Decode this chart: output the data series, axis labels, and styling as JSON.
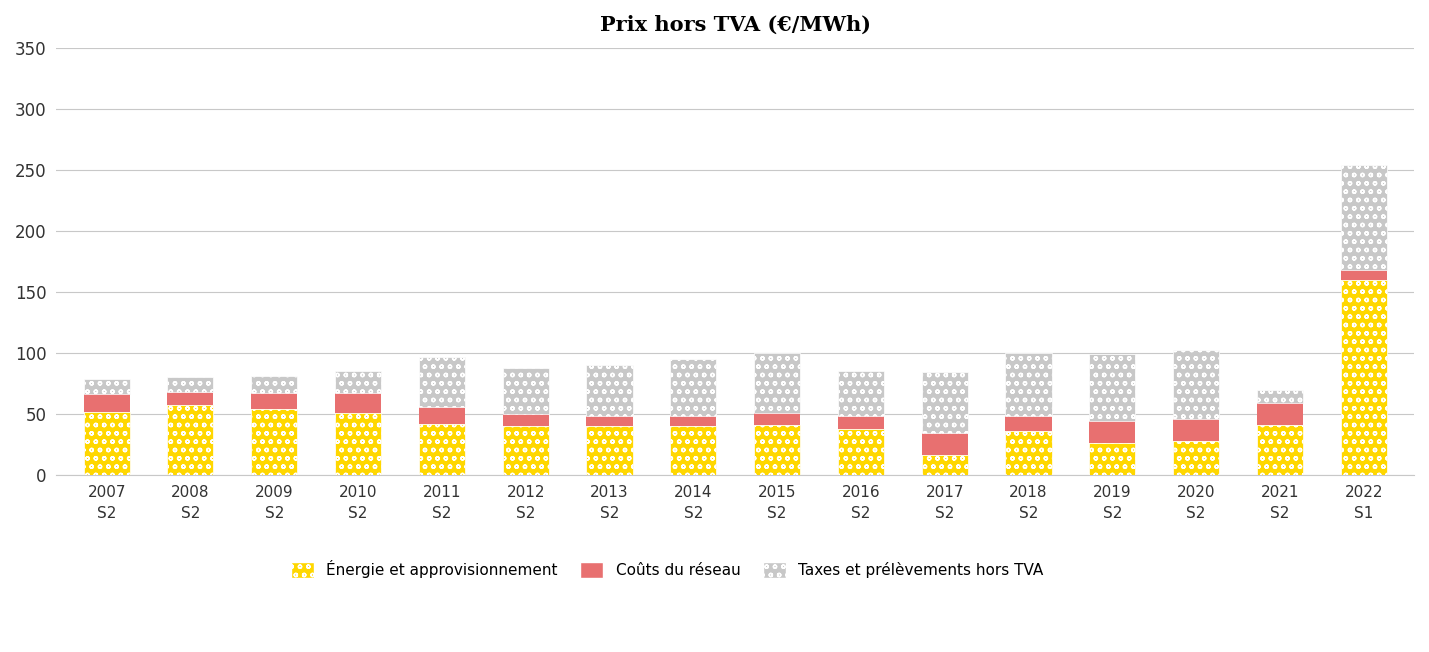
{
  "title": "Prix hors TVA (€/MWh)",
  "categories": [
    "2007\nS2",
    "2008\nS2",
    "2009\nS2",
    "2010\nS2",
    "2011\nS2",
    "2012\nS2",
    "2013\nS2",
    "2014\nS2",
    "2015\nS2",
    "2016\nS2",
    "2017\nS2",
    "2018\nS2",
    "2019\nS2",
    "2020\nS2",
    "2021\nS2",
    "2022\nS1"
  ],
  "energie": [
    52,
    57,
    54,
    51,
    42,
    40,
    40,
    40,
    41,
    38,
    16,
    36,
    26,
    28,
    41,
    160
  ],
  "reseau": [
    14,
    11,
    13,
    16,
    14,
    10,
    8,
    8,
    10,
    10,
    18,
    12,
    18,
    18,
    18,
    8
  ],
  "taxes": [
    13,
    12,
    14,
    18,
    41,
    38,
    42,
    47,
    49,
    37,
    50,
    52,
    55,
    56,
    11,
    86
  ],
  "color_energie": "#FFD700",
  "color_reseau": "#E87070",
  "color_taxes": "#C8C8C8",
  "legend_energie": "Énergie et approvisionnement",
  "legend_reseau": "Coûts du réseau",
  "legend_taxes": "Taxes et prélèvements hors TVA",
  "ylim": [
    0,
    350
  ],
  "yticks": [
    0,
    50,
    100,
    150,
    200,
    250,
    300,
    350
  ],
  "background_color": "#FFFFFF",
  "grid_color": "#C8C8C8"
}
